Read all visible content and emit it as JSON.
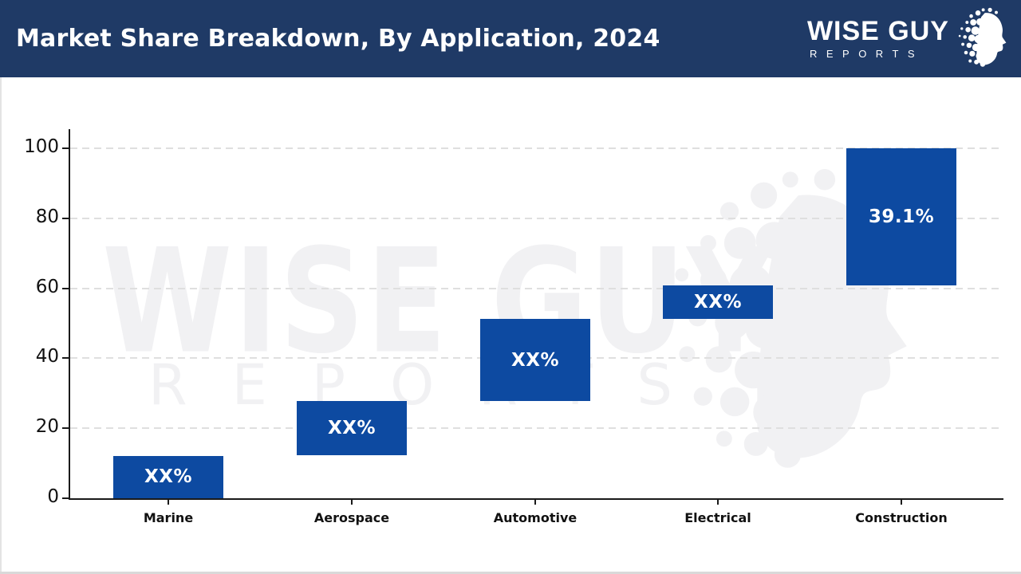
{
  "header": {
    "title": "Market Share Breakdown, By Application, 2024",
    "logo": {
      "name": "WISE GUY",
      "subtitle": "REPORTS"
    }
  },
  "watermark": {
    "line1": "WISE GUY",
    "line2": "REPORTS"
  },
  "chart_data": {
    "type": "bar",
    "subtype": "floating-segment-waterfall",
    "title": "Market Share Breakdown, By Application, 2024",
    "xlabel": "",
    "ylabel": "",
    "ylim": [
      0,
      100
    ],
    "yticks": [
      0,
      20,
      40,
      60,
      80,
      100
    ],
    "grid": "horizontal-dashed",
    "legend": "none",
    "categories": [
      "Marine",
      "Aerospace",
      "Automotive",
      "Electrical",
      "Construction"
    ],
    "segments": [
      {
        "category": "Marine",
        "start": 0,
        "end": 12.1,
        "label": "XX%"
      },
      {
        "category": "Aerospace",
        "start": 12.3,
        "end": 27.8,
        "label": "XX%"
      },
      {
        "category": "Automotive",
        "start": 27.8,
        "end": 51.2,
        "label": "XX%"
      },
      {
        "category": "Electrical",
        "start": 51.2,
        "end": 60.9,
        "label": "XX%"
      },
      {
        "category": "Construction",
        "start": 60.9,
        "end": 100,
        "label": "39.1%",
        "value": 39.1
      }
    ]
  },
  "colors": {
    "header_bg": "#1f3a66",
    "bar": "#0d4aa1",
    "bar_label": "#ffffff",
    "axis": "#1a1a1a",
    "gridline": "#dfdfdf",
    "watermark": "#f1f1f3"
  }
}
